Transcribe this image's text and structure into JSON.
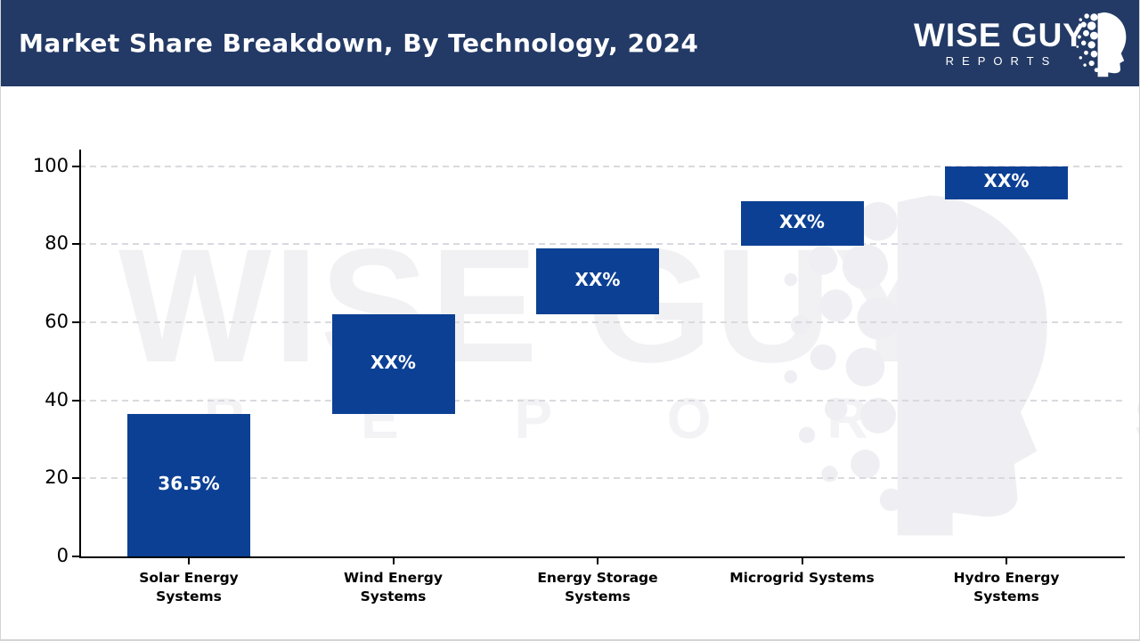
{
  "header": {
    "title": "Market Share Breakdown, By Technology, 2024",
    "background_color": "#233a66",
    "logo": {
      "line1": "WISE GUY",
      "line2": "REPORTS"
    }
  },
  "watermark": {
    "line1": "WISE GUY",
    "line2": "R E P O R T S"
  },
  "chart_data": {
    "type": "bar",
    "subtype": "waterfall",
    "title": "Market Share Breakdown, By Technology, 2024",
    "categories": [
      "Solar Energy Systems",
      "Wind Energy Systems",
      "Energy Storage Systems",
      "Microgrid Systems",
      "Hydro Energy Systems"
    ],
    "bars": [
      {
        "category": "Solar Energy Systems",
        "label_lines": [
          "Solar Energy",
          "Systems"
        ],
        "start": 0,
        "end": 36.5,
        "value_label": "36.5%"
      },
      {
        "category": "Wind Energy Systems",
        "label_lines": [
          "Wind Energy",
          "Systems"
        ],
        "start": 36.5,
        "end": 62,
        "value_label": "XX%"
      },
      {
        "category": "Energy Storage Systems",
        "label_lines": [
          "Energy Storage",
          "Systems"
        ],
        "start": 62,
        "end": 79,
        "value_label": "XX%"
      },
      {
        "category": "Microgrid Systems",
        "label_lines": [
          "Microgrid Systems"
        ],
        "start": 79.5,
        "end": 91,
        "value_label": "XX%"
      },
      {
        "category": "Hydro Energy Systems",
        "label_lines": [
          "Hydro Energy",
          "Systems"
        ],
        "start": 91.5,
        "end": 100,
        "value_label": "XX%"
      }
    ],
    "yticks": [
      0,
      20,
      40,
      60,
      80,
      100
    ],
    "ylim": [
      0,
      104
    ],
    "xlabel": "",
    "ylabel": "",
    "grid": {
      "axis": "y",
      "style": "dashed"
    },
    "legend": "none",
    "colors": {
      "bar": "#0c4094",
      "grid": "#dadade",
      "axis": "#000000",
      "value_label": "#ffffff",
      "tick_label": "#000000"
    }
  }
}
